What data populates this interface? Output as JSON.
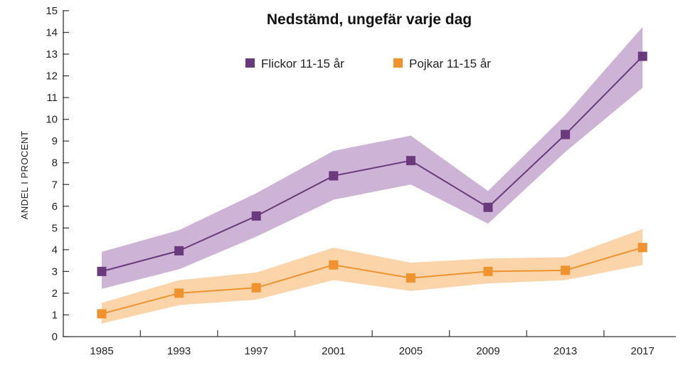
{
  "chart_data": {
    "type": "line",
    "title": "Nedstämd, ungefär varje dag",
    "xlabel": "",
    "ylabel": "ANDEL I PROCENT",
    "categories": [
      "1985",
      "1993",
      "1997",
      "2001",
      "2005",
      "2009",
      "2013",
      "2017"
    ],
    "ylim": [
      0,
      15
    ],
    "yticks": [
      0,
      1,
      2,
      3,
      4,
      5,
      6,
      7,
      8,
      9,
      10,
      11,
      12,
      13,
      14,
      15
    ],
    "grid": false,
    "legend_position": "top-center",
    "series": [
      {
        "name": "Flickor 11-15 år",
        "color": "#6b3a7d",
        "band_color": "#cdb3d6",
        "values": [
          3.0,
          3.95,
          5.55,
          7.4,
          8.1,
          5.95,
          9.3,
          12.9
        ],
        "lower": [
          2.2,
          3.1,
          4.6,
          6.3,
          7.0,
          5.2,
          8.5,
          11.45
        ],
        "upper": [
          3.9,
          4.9,
          6.6,
          8.55,
          9.25,
          6.7,
          10.2,
          14.25
        ]
      },
      {
        "name": "Pojkar 11-15 år",
        "color": "#f0922e",
        "band_color": "#fbd5a9",
        "values": [
          1.05,
          2.0,
          2.25,
          3.3,
          2.7,
          3.0,
          3.05,
          4.1
        ],
        "lower": [
          0.6,
          1.45,
          1.7,
          2.6,
          2.1,
          2.45,
          2.6,
          3.3
        ],
        "upper": [
          1.55,
          2.6,
          2.95,
          4.1,
          3.4,
          3.6,
          3.65,
          4.95
        ]
      }
    ]
  }
}
